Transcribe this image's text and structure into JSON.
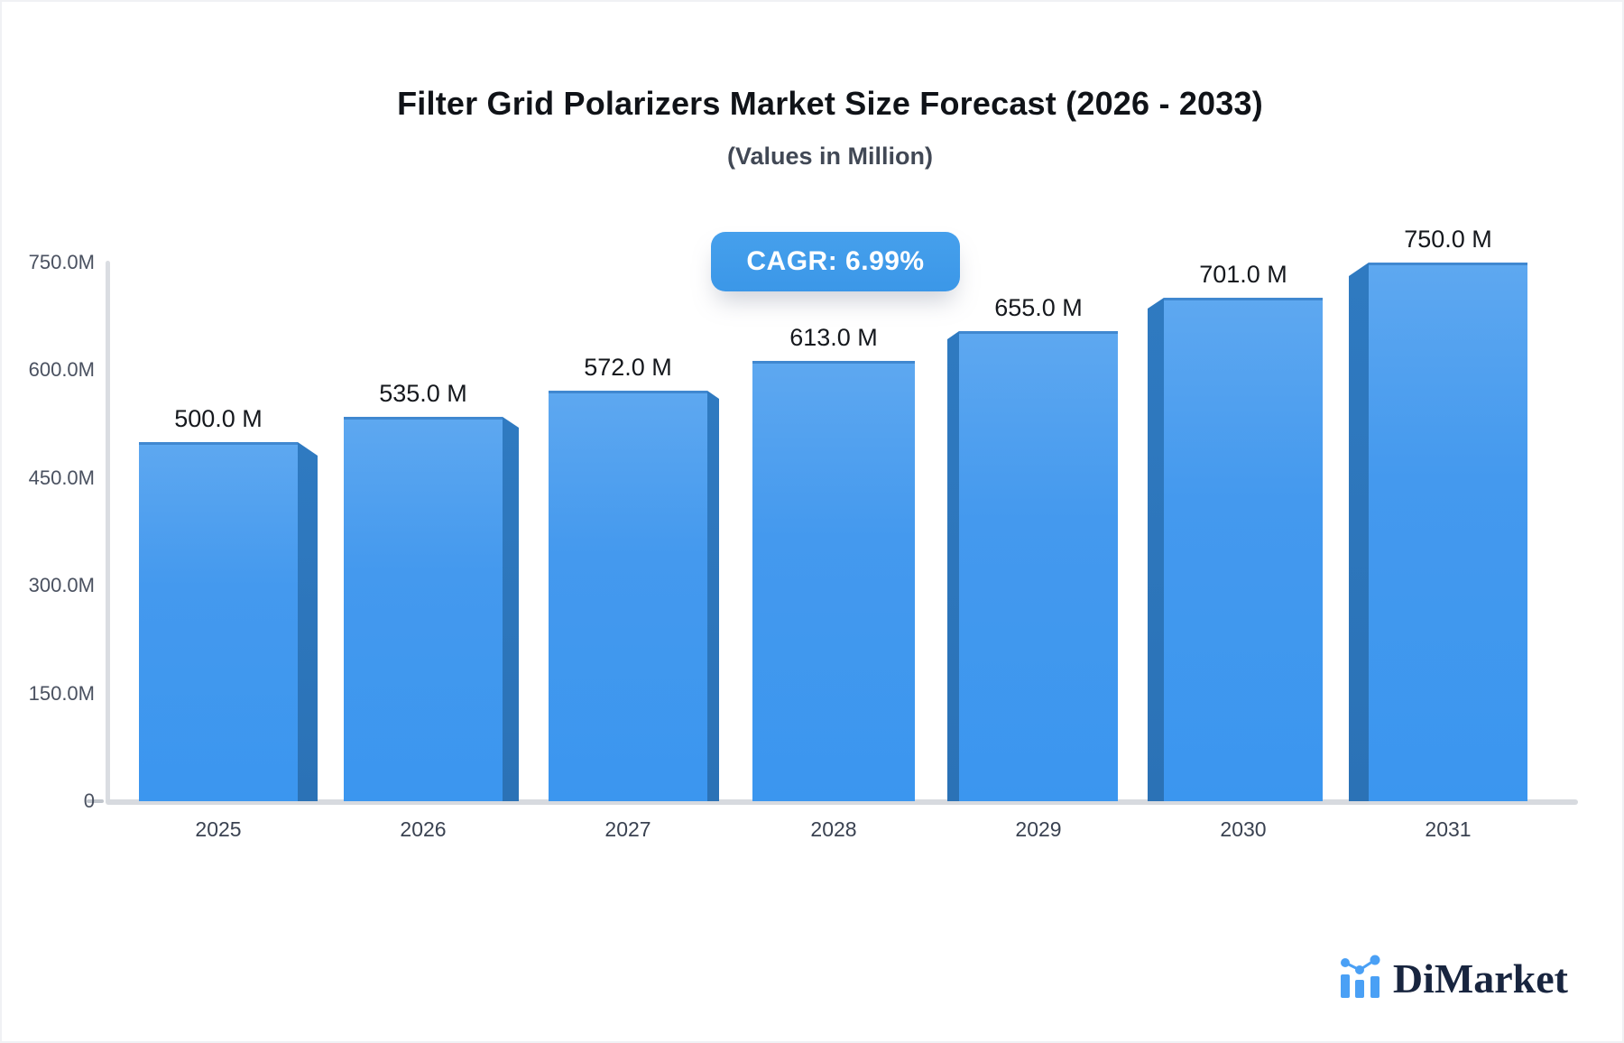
{
  "chart_data": {
    "type": "bar",
    "title": "Filter Grid Polarizers Market Size Forecast (2026 - 2033)",
    "subtitle": "(Values in Million)",
    "badge_label": "CAGR: 6.99%",
    "categories": [
      "2025",
      "2026",
      "2027",
      "2028",
      "2029",
      "2030",
      "2031"
    ],
    "values": [
      500,
      535,
      572,
      613,
      655,
      701,
      750
    ],
    "value_labels": [
      "500.0 M",
      "535.0 M",
      "572.0 M",
      "613.0 M",
      "655.0 M",
      "701.0 M",
      "750.0 M"
    ],
    "y_tick_values": [
      750,
      600,
      450,
      300,
      150,
      0
    ],
    "y_tick_labels": [
      "750.0M",
      "600.0M",
      "450.0M",
      "300.0M",
      "150.0M",
      "0"
    ],
    "ylim": [
      0,
      750
    ],
    "grid": false,
    "legend": false,
    "bar_color": "#3E98EE",
    "bar_side_color": "#2D76BB",
    "badge_color": "#3F9BEA"
  },
  "branding": {
    "logo_text": "DiMarket",
    "logo_icon": "bar-chart-icon",
    "logo_text_color": "#18253F",
    "logo_icon_color": "#4AA0F5"
  }
}
